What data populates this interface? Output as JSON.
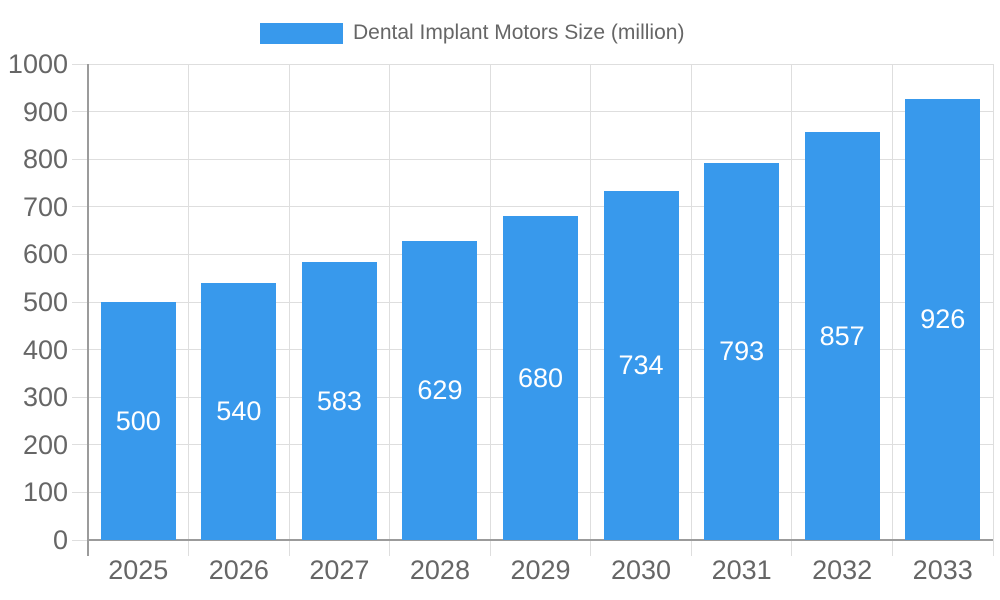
{
  "chart_data": {
    "type": "bar",
    "title": "",
    "categories": [
      "2025",
      "2026",
      "2027",
      "2028",
      "2029",
      "2030",
      "2031",
      "2032",
      "2033"
    ],
    "series": [
      {
        "name": "Dental Implant Motors Size (million)",
        "values": [
          500,
          540,
          583,
          629,
          680,
          734,
          793,
          857,
          926
        ]
      }
    ],
    "value_labels": [
      "500",
      "540",
      "583",
      "629",
      "680",
      "734",
      "793",
      "857",
      "926"
    ],
    "xlabel": "",
    "ylabel": "",
    "ylim": [
      0,
      1000
    ],
    "yticks": [
      0,
      100,
      200,
      300,
      400,
      500,
      600,
      700,
      800,
      900,
      1000
    ],
    "grid": "both",
    "legend_position": "top",
    "value_label_position": "center-of-bar"
  },
  "colors": {
    "bar": "#3899EC",
    "grid": "#dedede",
    "axis": "#9b9b9b",
    "tick_text": "#666666",
    "legend_text": "#666666",
    "bar_label_text": "#ffffff",
    "background": "#ffffff"
  }
}
